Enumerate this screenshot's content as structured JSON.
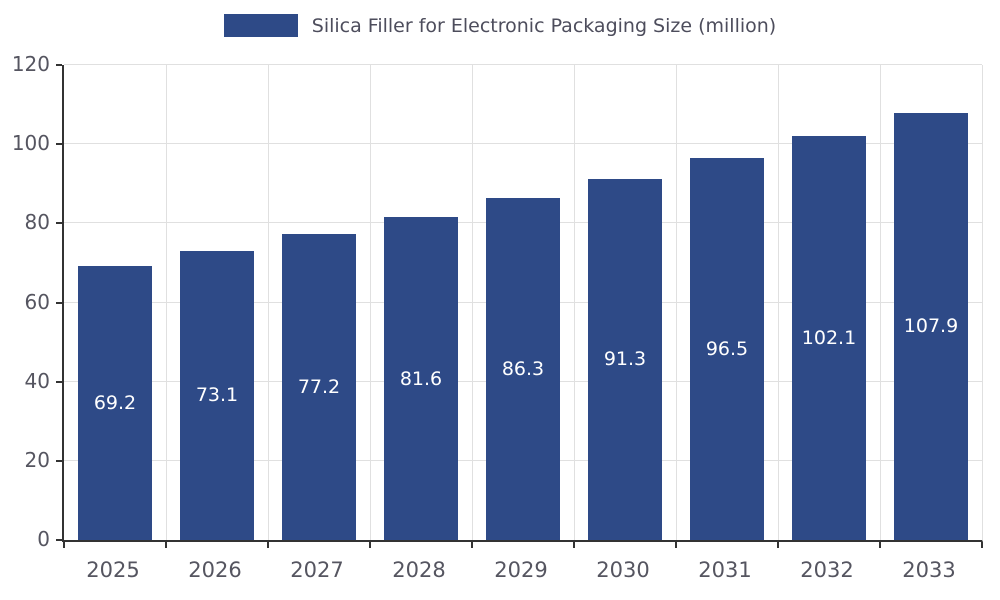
{
  "colors": {
    "bar": "#2e4a87",
    "grid": "#e0e0e0",
    "axis": "#333333",
    "tick_text": "#555560",
    "value_label": "#ffffff"
  },
  "legend": {
    "label": "Silica Filler for Electronic Packaging Size (million)"
  },
  "chart_data": {
    "type": "bar",
    "title": "Silica Filler for Electronic Packaging Size (million)",
    "categories": [
      "2025",
      "2026",
      "2027",
      "2028",
      "2029",
      "2030",
      "2031",
      "2032",
      "2033"
    ],
    "values": [
      69.2,
      73.1,
      77.2,
      81.6,
      86.3,
      91.3,
      96.5,
      102.1,
      107.9
    ],
    "xlabel": "",
    "ylabel": "",
    "ylim": [
      0,
      120
    ],
    "yticks": [
      0,
      20,
      40,
      60,
      80,
      100,
      120
    ],
    "grid": true,
    "legend_position": "top"
  }
}
